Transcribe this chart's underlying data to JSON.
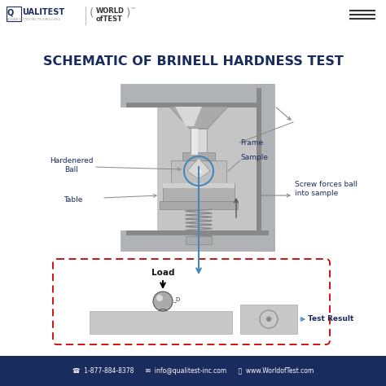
{
  "bg_color": "#ffffff",
  "title": "SCHEMATIC OF BRINELL HARDNESS TEST",
  "title_color": "#1a2b5e",
  "title_fontsize": 11.5,
  "footer_bg": "#1a2b5e",
  "label_color": "#1a2b5e",
  "label_fontsize": 6.5,
  "dashed_red": "#cc0000",
  "arrow_blue": "#4488bb",
  "gray_frame": "#b0b2b5",
  "gray_dark": "#888888",
  "gray_med": "#aaaaaa",
  "gray_light": "#cccccc",
  "gray_lighter": "#d8d8d8",
  "labels": {
    "hardenered_ball": "Hardenered\nBall",
    "frame": "Frame",
    "sample": "Sample",
    "table": "Table",
    "screw_forces": "Screw forces ball\ninto sample",
    "load": "Load",
    "test_result": "Test Result"
  }
}
